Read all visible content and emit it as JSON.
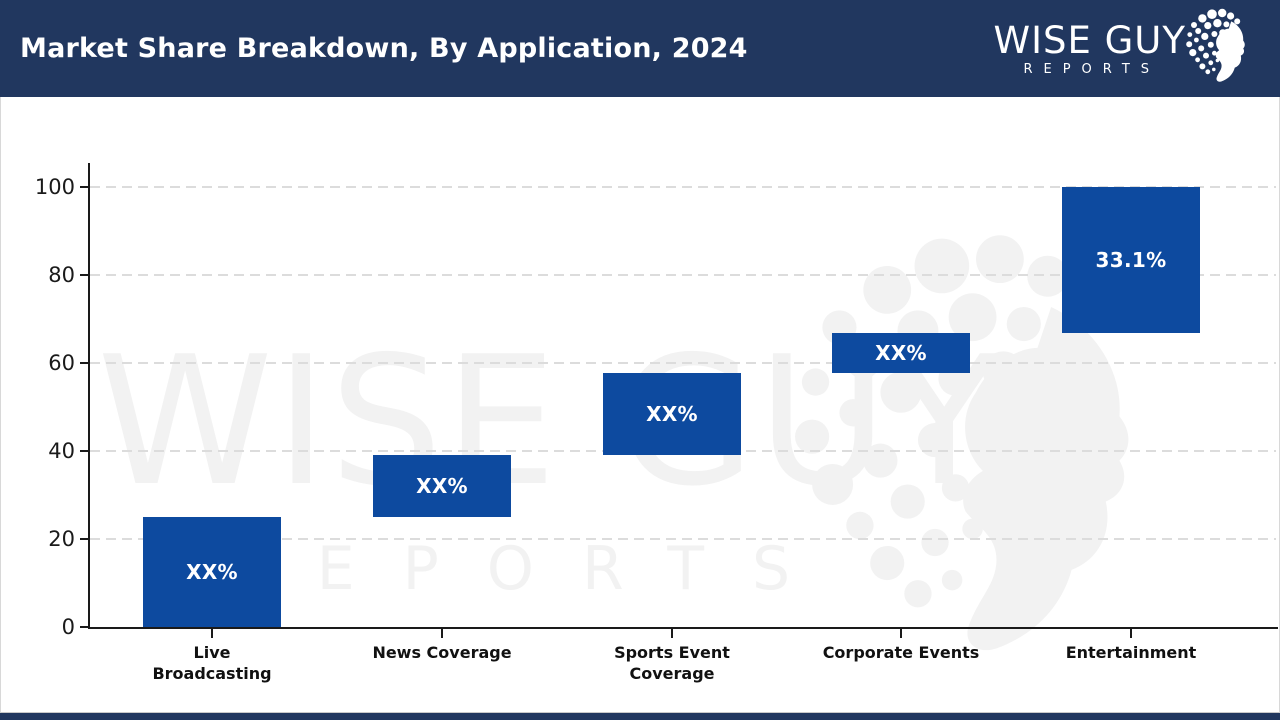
{
  "header": {
    "title": "Market Share Breakdown, By Application, 2024",
    "brand": {
      "line1": "WISE GUY",
      "line2": "REPORTS"
    }
  },
  "watermark": {
    "line1": "WISE GUY",
    "line2": "REPORTS"
  },
  "colors": {
    "header_bg": "#21375f",
    "footer_bg": "#21375f",
    "bar_blue": "#0d4a9f",
    "axis": "#1a1a1a",
    "grid": "#dcdcdc",
    "watermark_gray": "#f2f2f2",
    "bar_label_white": "#ffffff"
  },
  "chart_data": {
    "type": "bar",
    "subtype": "waterfall",
    "title": "Market Share Breakdown, By Application, 2024",
    "categories": [
      "Live Broadcasting",
      "News Coverage",
      "Sports Event Coverage",
      "Corporate Events",
      "Entertainment"
    ],
    "segments": [
      {
        "category": "Live Broadcasting",
        "start": 0,
        "end": 25,
        "value_label": "XX%"
      },
      {
        "category": "News Coverage",
        "start": 25,
        "end": 39.1,
        "value_label": "XX%"
      },
      {
        "category": "Sports Event Coverage",
        "start": 39.1,
        "end": 57.7,
        "value_label": "XX%"
      },
      {
        "category": "Corporate Events",
        "start": 57.7,
        "end": 66.9,
        "value_label": "XX%"
      },
      {
        "category": "Entertainment",
        "start": 66.9,
        "end": 100,
        "value_label": "33.1%"
      }
    ],
    "yticks": [
      0,
      20,
      40,
      60,
      80,
      100
    ],
    "ylim": [
      0,
      100
    ],
    "xlabel": "",
    "ylabel": "",
    "grid": "horizontal-dashed",
    "legend": "none"
  }
}
